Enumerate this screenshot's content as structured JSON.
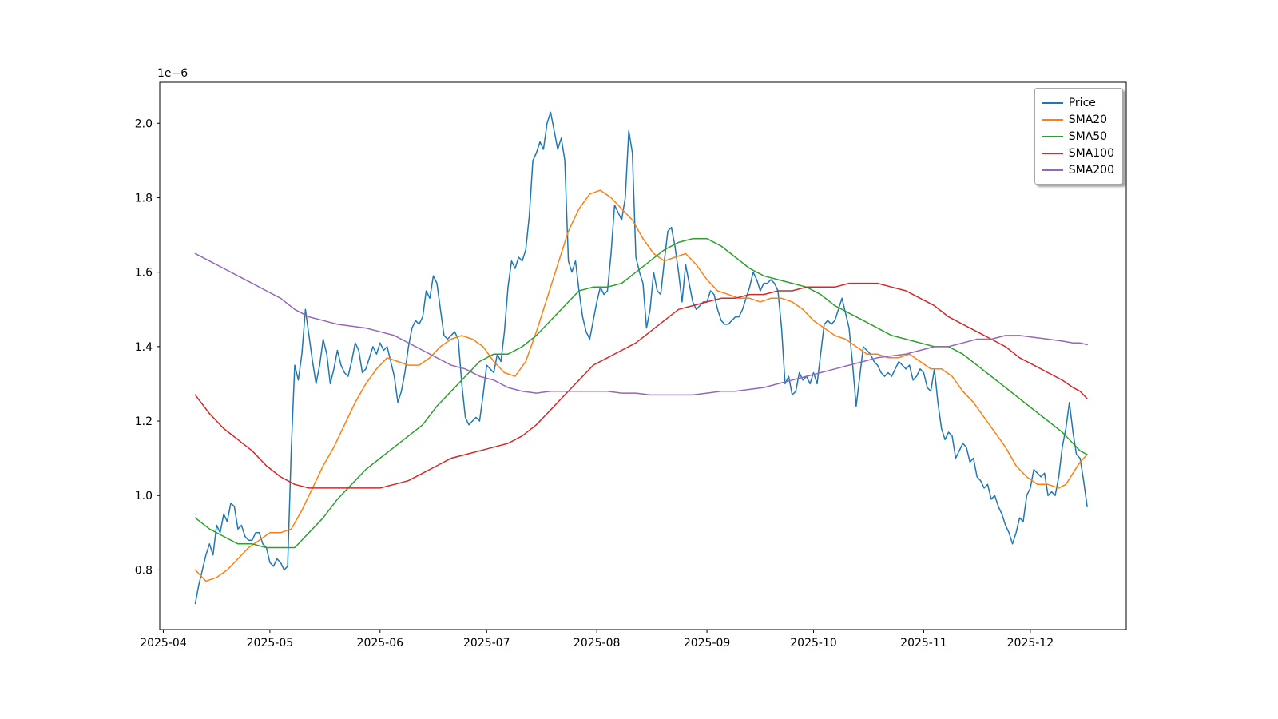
{
  "chart_data": {
    "type": "line",
    "title": "",
    "xlabel": "",
    "ylabel": "",
    "offset_label": "1e−6",
    "legend_position": "upper right",
    "grid": false,
    "xlim": [
      "2025-03-31",
      "2025-12-28"
    ],
    "ylim": [
      0.64,
      2.11
    ],
    "x_ticks": [
      {
        "date": "2025-04-01",
        "label": "2025-04"
      },
      {
        "date": "2025-05-01",
        "label": "2025-05"
      },
      {
        "date": "2025-06-01",
        "label": "2025-06"
      },
      {
        "date": "2025-07-01",
        "label": "2025-07"
      },
      {
        "date": "2025-08-01",
        "label": "2025-08"
      },
      {
        "date": "2025-09-01",
        "label": "2025-09"
      },
      {
        "date": "2025-10-01",
        "label": "2025-10"
      },
      {
        "date": "2025-11-01",
        "label": "2025-11"
      },
      {
        "date": "2025-12-01",
        "label": "2025-12"
      }
    ],
    "y_ticks": [
      {
        "value": 0.8,
        "label": "0.8"
      },
      {
        "value": 1.0,
        "label": "1.0"
      },
      {
        "value": 1.2,
        "label": "1.2"
      },
      {
        "value": 1.4,
        "label": "1.4"
      },
      {
        "value": 1.6,
        "label": "1.6"
      },
      {
        "value": 1.8,
        "label": "1.8"
      },
      {
        "value": 2.0,
        "label": "2.0"
      }
    ],
    "y_unit": "1e-6",
    "series": [
      {
        "name": "Price",
        "color": "#1f77b4",
        "x_start": "2025-04-10",
        "freq": "daily",
        "y": [
          0.71,
          0.76,
          0.8,
          0.84,
          0.87,
          0.84,
          0.92,
          0.9,
          0.95,
          0.93,
          0.98,
          0.97,
          0.91,
          0.92,
          0.89,
          0.88,
          0.88,
          0.9,
          0.9,
          0.87,
          0.86,
          0.82,
          0.81,
          0.83,
          0.82,
          0.8,
          0.81,
          1.12,
          1.35,
          1.31,
          1.38,
          1.5,
          1.43,
          1.36,
          1.3,
          1.35,
          1.42,
          1.38,
          1.3,
          1.34,
          1.39,
          1.35,
          1.33,
          1.32,
          1.36,
          1.41,
          1.39,
          1.33,
          1.34,
          1.37,
          1.4,
          1.38,
          1.41,
          1.39,
          1.4,
          1.36,
          1.32,
          1.25,
          1.28,
          1.33,
          1.4,
          1.45,
          1.47,
          1.46,
          1.48,
          1.55,
          1.53,
          1.59,
          1.57,
          1.5,
          1.43,
          1.42,
          1.43,
          1.44,
          1.42,
          1.3,
          1.21,
          1.19,
          1.2,
          1.21,
          1.2,
          1.27,
          1.35,
          1.34,
          1.33,
          1.38,
          1.36,
          1.44,
          1.56,
          1.63,
          1.61,
          1.64,
          1.63,
          1.66,
          1.75,
          1.9,
          1.92,
          1.95,
          1.93,
          2.0,
          2.03,
          1.98,
          1.93,
          1.96,
          1.9,
          1.63,
          1.6,
          1.63,
          1.55,
          1.48,
          1.44,
          1.42,
          1.47,
          1.52,
          1.56,
          1.54,
          1.55,
          1.65,
          1.78,
          1.76,
          1.74,
          1.8,
          1.98,
          1.92,
          1.64,
          1.6,
          1.57,
          1.45,
          1.5,
          1.6,
          1.55,
          1.54,
          1.63,
          1.71,
          1.72,
          1.67,
          1.6,
          1.52,
          1.62,
          1.57,
          1.52,
          1.5,
          1.51,
          1.52,
          1.52,
          1.55,
          1.54,
          1.5,
          1.47,
          1.46,
          1.46,
          1.47,
          1.48,
          1.48,
          1.5,
          1.53,
          1.56,
          1.6,
          1.58,
          1.55,
          1.57,
          1.57,
          1.58,
          1.57,
          1.55,
          1.45,
          1.3,
          1.32,
          1.27,
          1.28,
          1.33,
          1.31,
          1.32,
          1.3,
          1.33,
          1.3,
          1.38,
          1.46,
          1.47,
          1.46,
          1.47,
          1.5,
          1.53,
          1.49,
          1.45,
          1.35,
          1.24,
          1.32,
          1.4,
          1.39,
          1.38,
          1.36,
          1.35,
          1.33,
          1.32,
          1.33,
          1.32,
          1.34,
          1.36,
          1.35,
          1.34,
          1.35,
          1.31,
          1.32,
          1.34,
          1.33,
          1.29,
          1.28,
          1.34,
          1.25,
          1.18,
          1.15,
          1.17,
          1.16,
          1.1,
          1.12,
          1.14,
          1.13,
          1.09,
          1.1,
          1.05,
          1.04,
          1.02,
          1.03,
          0.99,
          1.0,
          0.97,
          0.95,
          0.92,
          0.9,
          0.87,
          0.9,
          0.94,
          0.93,
          1.0,
          1.02,
          1.07,
          1.06,
          1.05,
          1.06,
          1.0,
          1.01,
          1.0,
          1.05,
          1.13,
          1.18,
          1.25,
          1.17,
          1.11,
          1.1,
          1.04,
          0.97
        ]
      },
      {
        "name": "SMA20",
        "color": "#ff7f0e",
        "x": [
          "2025-04-10",
          "2025-04-13",
          "2025-04-16",
          "2025-04-19",
          "2025-04-22",
          "2025-04-25",
          "2025-04-28",
          "2025-05-01",
          "2025-05-04",
          "2025-05-07",
          "2025-05-10",
          "2025-05-13",
          "2025-05-16",
          "2025-05-19",
          "2025-05-22",
          "2025-05-25",
          "2025-05-28",
          "2025-05-31",
          "2025-06-03",
          "2025-06-06",
          "2025-06-09",
          "2025-06-12",
          "2025-06-15",
          "2025-06-18",
          "2025-06-21",
          "2025-06-24",
          "2025-06-27",
          "2025-06-30",
          "2025-07-03",
          "2025-07-06",
          "2025-07-09",
          "2025-07-12",
          "2025-07-15",
          "2025-07-18",
          "2025-07-21",
          "2025-07-24",
          "2025-07-27",
          "2025-07-30",
          "2025-08-02",
          "2025-08-05",
          "2025-08-08",
          "2025-08-11",
          "2025-08-14",
          "2025-08-17",
          "2025-08-20",
          "2025-08-23",
          "2025-08-26",
          "2025-08-29",
          "2025-09-01",
          "2025-09-04",
          "2025-09-07",
          "2025-09-10",
          "2025-09-13",
          "2025-09-16",
          "2025-09-19",
          "2025-09-22",
          "2025-09-25",
          "2025-09-28",
          "2025-10-01",
          "2025-10-04",
          "2025-10-07",
          "2025-10-10",
          "2025-10-13",
          "2025-10-16",
          "2025-10-19",
          "2025-10-22",
          "2025-10-25",
          "2025-10-28",
          "2025-10-31",
          "2025-11-03",
          "2025-11-06",
          "2025-11-09",
          "2025-11-12",
          "2025-11-15",
          "2025-11-18",
          "2025-11-21",
          "2025-11-24",
          "2025-11-27",
          "2025-11-30",
          "2025-12-03",
          "2025-12-06",
          "2025-12-09",
          "2025-12-11",
          "2025-12-13",
          "2025-12-15",
          "2025-12-17"
        ],
        "y": [
          0.8,
          0.77,
          0.78,
          0.8,
          0.83,
          0.86,
          0.88,
          0.9,
          0.9,
          0.91,
          0.96,
          1.02,
          1.08,
          1.13,
          1.19,
          1.25,
          1.3,
          1.34,
          1.37,
          1.36,
          1.35,
          1.35,
          1.37,
          1.4,
          1.42,
          1.43,
          1.42,
          1.4,
          1.36,
          1.33,
          1.32,
          1.36,
          1.44,
          1.53,
          1.62,
          1.71,
          1.77,
          1.81,
          1.82,
          1.8,
          1.77,
          1.74,
          1.69,
          1.65,
          1.63,
          1.64,
          1.65,
          1.62,
          1.58,
          1.55,
          1.54,
          1.53,
          1.53,
          1.52,
          1.53,
          1.53,
          1.52,
          1.5,
          1.47,
          1.45,
          1.43,
          1.42,
          1.4,
          1.38,
          1.38,
          1.37,
          1.37,
          1.38,
          1.36,
          1.34,
          1.34,
          1.32,
          1.28,
          1.25,
          1.21,
          1.17,
          1.13,
          1.08,
          1.05,
          1.03,
          1.03,
          1.02,
          1.03,
          1.06,
          1.09,
          1.11
        ]
      },
      {
        "name": "SMA50",
        "color": "#2ca02c",
        "x": [
          "2025-04-10",
          "2025-04-14",
          "2025-04-18",
          "2025-04-22",
          "2025-04-26",
          "2025-04-30",
          "2025-05-04",
          "2025-05-08",
          "2025-05-12",
          "2025-05-16",
          "2025-05-20",
          "2025-05-24",
          "2025-05-28",
          "2025-06-01",
          "2025-06-05",
          "2025-06-09",
          "2025-06-13",
          "2025-06-17",
          "2025-06-21",
          "2025-06-25",
          "2025-06-29",
          "2025-07-03",
          "2025-07-07",
          "2025-07-11",
          "2025-07-15",
          "2025-07-19",
          "2025-07-23",
          "2025-07-27",
          "2025-07-31",
          "2025-08-04",
          "2025-08-08",
          "2025-08-12",
          "2025-08-16",
          "2025-08-20",
          "2025-08-24",
          "2025-08-28",
          "2025-09-01",
          "2025-09-05",
          "2025-09-09",
          "2025-09-13",
          "2025-09-17",
          "2025-09-21",
          "2025-09-25",
          "2025-09-29",
          "2025-10-03",
          "2025-10-07",
          "2025-10-11",
          "2025-10-15",
          "2025-10-19",
          "2025-10-23",
          "2025-10-27",
          "2025-10-31",
          "2025-11-04",
          "2025-11-08",
          "2025-11-12",
          "2025-11-16",
          "2025-11-20",
          "2025-11-24",
          "2025-11-28",
          "2025-12-02",
          "2025-12-06",
          "2025-12-10",
          "2025-12-13",
          "2025-12-15",
          "2025-12-17"
        ],
        "y": [
          0.94,
          0.91,
          0.89,
          0.87,
          0.87,
          0.86,
          0.86,
          0.86,
          0.9,
          0.94,
          0.99,
          1.03,
          1.07,
          1.1,
          1.13,
          1.16,
          1.19,
          1.24,
          1.28,
          1.32,
          1.36,
          1.38,
          1.38,
          1.4,
          1.43,
          1.47,
          1.51,
          1.55,
          1.56,
          1.56,
          1.57,
          1.6,
          1.63,
          1.66,
          1.68,
          1.69,
          1.69,
          1.67,
          1.64,
          1.61,
          1.59,
          1.58,
          1.57,
          1.56,
          1.54,
          1.51,
          1.49,
          1.47,
          1.45,
          1.43,
          1.42,
          1.41,
          1.4,
          1.4,
          1.38,
          1.35,
          1.32,
          1.29,
          1.26,
          1.23,
          1.2,
          1.17,
          1.14,
          1.12,
          1.11
        ]
      },
      {
        "name": "SMA100",
        "color": "#d62728",
        "x": [
          "2025-04-10",
          "2025-04-14",
          "2025-04-18",
          "2025-04-22",
          "2025-04-26",
          "2025-04-30",
          "2025-05-04",
          "2025-05-08",
          "2025-05-12",
          "2025-05-16",
          "2025-05-20",
          "2025-05-24",
          "2025-05-28",
          "2025-06-01",
          "2025-06-05",
          "2025-06-09",
          "2025-06-13",
          "2025-06-17",
          "2025-06-21",
          "2025-06-25",
          "2025-06-29",
          "2025-07-03",
          "2025-07-07",
          "2025-07-11",
          "2025-07-15",
          "2025-07-19",
          "2025-07-23",
          "2025-07-27",
          "2025-07-31",
          "2025-08-04",
          "2025-08-08",
          "2025-08-12",
          "2025-08-16",
          "2025-08-20",
          "2025-08-24",
          "2025-08-28",
          "2025-09-01",
          "2025-09-05",
          "2025-09-09",
          "2025-09-13",
          "2025-09-17",
          "2025-09-21",
          "2025-09-25",
          "2025-09-29",
          "2025-10-03",
          "2025-10-07",
          "2025-10-11",
          "2025-10-15",
          "2025-10-19",
          "2025-10-23",
          "2025-10-27",
          "2025-10-31",
          "2025-11-04",
          "2025-11-08",
          "2025-11-12",
          "2025-11-16",
          "2025-11-20",
          "2025-11-24",
          "2025-11-28",
          "2025-12-02",
          "2025-12-06",
          "2025-12-10",
          "2025-12-13",
          "2025-12-15",
          "2025-12-17"
        ],
        "y": [
          1.27,
          1.22,
          1.18,
          1.15,
          1.12,
          1.08,
          1.05,
          1.03,
          1.02,
          1.02,
          1.02,
          1.02,
          1.02,
          1.02,
          1.03,
          1.04,
          1.06,
          1.08,
          1.1,
          1.11,
          1.12,
          1.13,
          1.14,
          1.16,
          1.19,
          1.23,
          1.27,
          1.31,
          1.35,
          1.37,
          1.39,
          1.41,
          1.44,
          1.47,
          1.5,
          1.51,
          1.52,
          1.53,
          1.53,
          1.54,
          1.54,
          1.55,
          1.55,
          1.56,
          1.56,
          1.56,
          1.57,
          1.57,
          1.57,
          1.56,
          1.55,
          1.53,
          1.51,
          1.48,
          1.46,
          1.44,
          1.42,
          1.4,
          1.37,
          1.35,
          1.33,
          1.31,
          1.29,
          1.28,
          1.26
        ]
      },
      {
        "name": "SMA200",
        "color": "#9467bd",
        "x": [
          "2025-04-10",
          "2025-04-14",
          "2025-04-18",
          "2025-04-22",
          "2025-04-26",
          "2025-04-30",
          "2025-05-04",
          "2025-05-08",
          "2025-05-12",
          "2025-05-16",
          "2025-05-20",
          "2025-05-24",
          "2025-05-28",
          "2025-06-01",
          "2025-06-05",
          "2025-06-09",
          "2025-06-13",
          "2025-06-17",
          "2025-06-21",
          "2025-06-25",
          "2025-06-29",
          "2025-07-03",
          "2025-07-07",
          "2025-07-11",
          "2025-07-15",
          "2025-07-19",
          "2025-07-23",
          "2025-07-27",
          "2025-07-31",
          "2025-08-04",
          "2025-08-08",
          "2025-08-12",
          "2025-08-16",
          "2025-08-20",
          "2025-08-24",
          "2025-08-28",
          "2025-09-01",
          "2025-09-05",
          "2025-09-09",
          "2025-09-13",
          "2025-09-17",
          "2025-09-21",
          "2025-09-25",
          "2025-09-29",
          "2025-10-03",
          "2025-10-07",
          "2025-10-11",
          "2025-10-15",
          "2025-10-19",
          "2025-10-23",
          "2025-10-27",
          "2025-10-31",
          "2025-11-04",
          "2025-11-08",
          "2025-11-12",
          "2025-11-16",
          "2025-11-20",
          "2025-11-24",
          "2025-11-28",
          "2025-12-02",
          "2025-12-06",
          "2025-12-10",
          "2025-12-13",
          "2025-12-15",
          "2025-12-17"
        ],
        "y": [
          1.65,
          1.63,
          1.61,
          1.59,
          1.57,
          1.55,
          1.53,
          1.5,
          1.48,
          1.47,
          1.46,
          1.455,
          1.45,
          1.44,
          1.43,
          1.41,
          1.39,
          1.37,
          1.35,
          1.34,
          1.32,
          1.31,
          1.29,
          1.28,
          1.275,
          1.28,
          1.28,
          1.28,
          1.28,
          1.28,
          1.275,
          1.275,
          1.27,
          1.27,
          1.27,
          1.27,
          1.275,
          1.28,
          1.28,
          1.285,
          1.29,
          1.3,
          1.31,
          1.32,
          1.33,
          1.34,
          1.35,
          1.36,
          1.37,
          1.375,
          1.38,
          1.39,
          1.4,
          1.4,
          1.41,
          1.42,
          1.42,
          1.43,
          1.43,
          1.425,
          1.42,
          1.415,
          1.41,
          1.41,
          1.405
        ]
      }
    ]
  }
}
